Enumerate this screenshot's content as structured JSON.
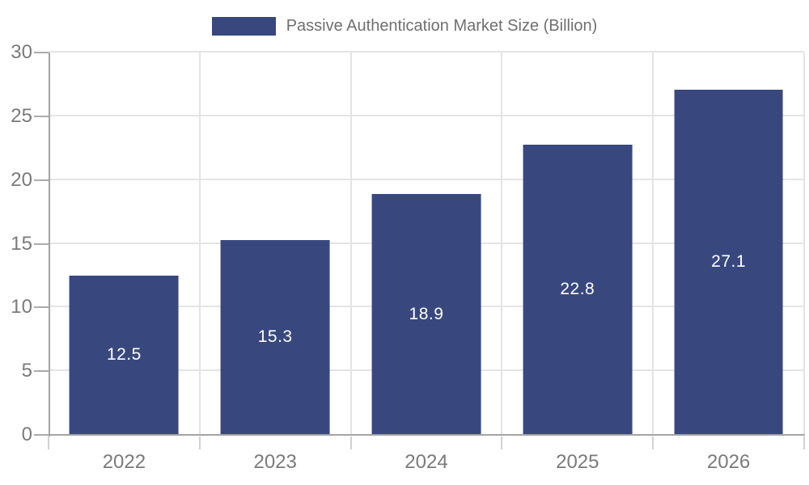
{
  "chart_data": {
    "type": "bar",
    "title": "Passive Authentication Market Size (Billion)",
    "legend": [
      "Passive Authentication Market Size (Billion)"
    ],
    "legend_position": "top-center",
    "categories": [
      "2022",
      "2023",
      "2024",
      "2025",
      "2026"
    ],
    "series": [
      {
        "name": "Passive Authentication Market Size (Billion)",
        "values": [
          12.5,
          15.3,
          18.9,
          22.8,
          27.1
        ]
      }
    ],
    "bar_value_labels": [
      "12.5",
      "15.3",
      "18.9",
      "22.8",
      "27.1"
    ],
    "bar_label_position": "center-inside",
    "xlabel": "",
    "ylabel": "",
    "ylim": [
      0,
      30
    ],
    "yticks": [
      0,
      5,
      10,
      15,
      20,
      25,
      30
    ],
    "grid": true,
    "colors": {
      "bar": "#38487F",
      "bar_value_label": "#ffffff",
      "grid": "#e4e4e4",
      "spine": "#a3a3a3",
      "y_tick_mark": "#ababab",
      "x_tick_mark": "#d2d2d2",
      "tick_label": "#7a7a7a",
      "legend_text": "#6f6f6f",
      "background": "#ffffff"
    }
  }
}
